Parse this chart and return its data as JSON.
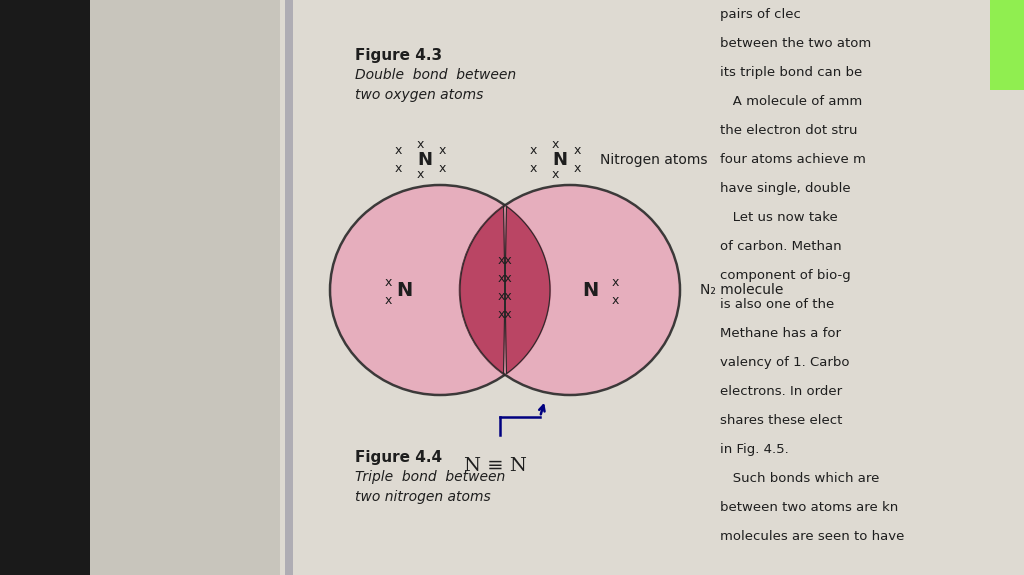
{
  "bg_color_left": "#2a2a2a",
  "bg_color_page": "#d8d5cc",
  "page_white": "#e8e6e0",
  "page_right_white": "#eceae4",
  "figure_title_43": "Figure 4.3",
  "figure_caption_43_1": "Double  bond  between",
  "figure_caption_43_2": "two oxygen atoms",
  "figure_title_44": "Figure 4.4",
  "figure_caption_44_1": "Triple  bond  between",
  "figure_caption_44_2": "two nitrogen atoms",
  "circle_pink_light": "#e8aabb",
  "circle_pink_medium": "#d07088",
  "circle_overlap_dark": "#b84060",
  "circle_edge": "#2a2a2a",
  "label_nitrogen_atoms": "Nitrogen atoms",
  "label_n2_molecule": "N₂ molecule",
  "triple_bond_text": "N ≡ N",
  "text_color": "#1e1e1e",
  "right_texts": [
    "pairs of clec",
    "between the two atom",
    "its triple bond can be",
    "   A molecule of amm",
    "the electron dot stru",
    "four atoms achieve m",
    "have single, double",
    "   Let us now take",
    "of carbon. Methan",
    "component of bio-g",
    "is also one of the",
    "Methane has a for",
    "valency of 1. Carbo",
    "electrons. In order",
    "shares these elect",
    "in Fig. 4.5.",
    "   Such bonds which are",
    "between two atoms are kn",
    "molecules are seen to have"
  ]
}
